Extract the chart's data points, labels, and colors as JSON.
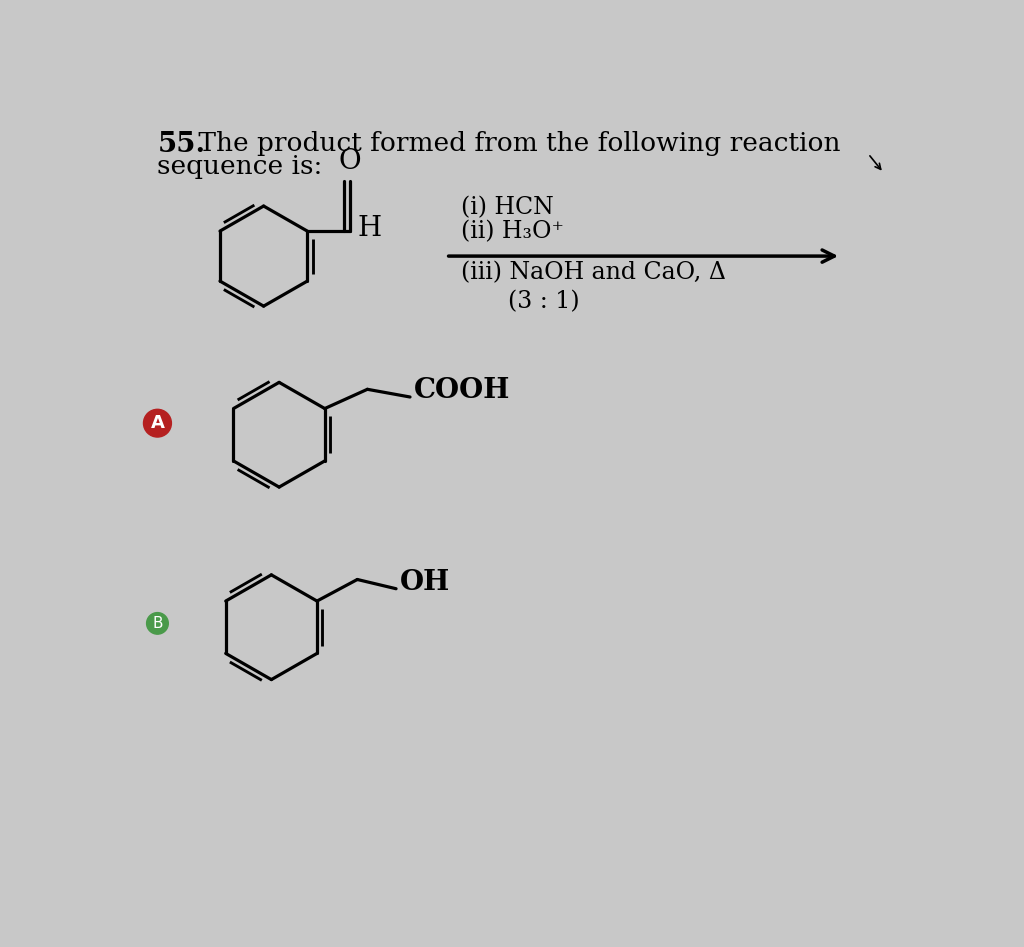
{
  "bg_color": "#c8c8c8",
  "title_bold": "55.",
  "title_rest": " The product formed from the following reaction",
  "title_line2": "sequence is:",
  "reaction_step1": "(i) HCN",
  "reaction_step2": "(ii) H₃O⁺",
  "reaction_step3": "(iii) NaOH and CaO, Δ",
  "reaction_step4": "(3 : 1)",
  "label_A_color": "#b52020",
  "label_B_color": "#4a9a4a",
  "font_size_title": 19,
  "font_size_body": 17
}
